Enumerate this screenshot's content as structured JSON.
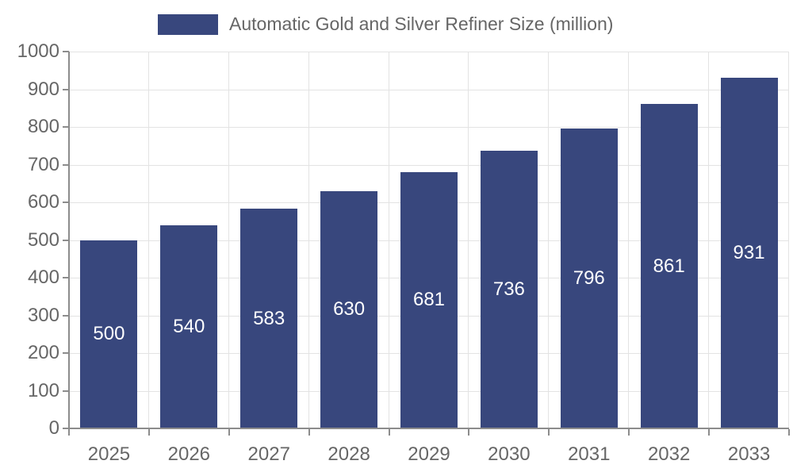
{
  "chart_data": {
    "type": "bar",
    "title": "Automatic Gold and Silver Refiner Size (million)",
    "categories": [
      "2025",
      "2026",
      "2027",
      "2028",
      "2029",
      "2030",
      "2031",
      "2032",
      "2033"
    ],
    "values": [
      500,
      540,
      583,
      630,
      681,
      736,
      796,
      861,
      931
    ],
    "series": [
      {
        "name": "Automatic Gold and Silver Refiner Size (million)",
        "values": [
          500,
          540,
          583,
          630,
          681,
          736,
          796,
          861,
          931
        ]
      }
    ],
    "xlabel": "",
    "ylabel": "",
    "ylim": [
      0,
      1000
    ],
    "ytick_interval": 100,
    "ytick_labels": [
      "0",
      "100",
      "200",
      "300",
      "400",
      "500",
      "600",
      "700",
      "800",
      "900",
      "1000"
    ],
    "grid": true,
    "legend_position": "top",
    "value_labels_shown": true,
    "colors": {
      "bar": "#38477D",
      "value_label": "#FFFFFF",
      "axis": "#8C8C8C",
      "gridline": "#E3E3E3",
      "text": "#666666",
      "background": "#FFFFFF"
    }
  }
}
